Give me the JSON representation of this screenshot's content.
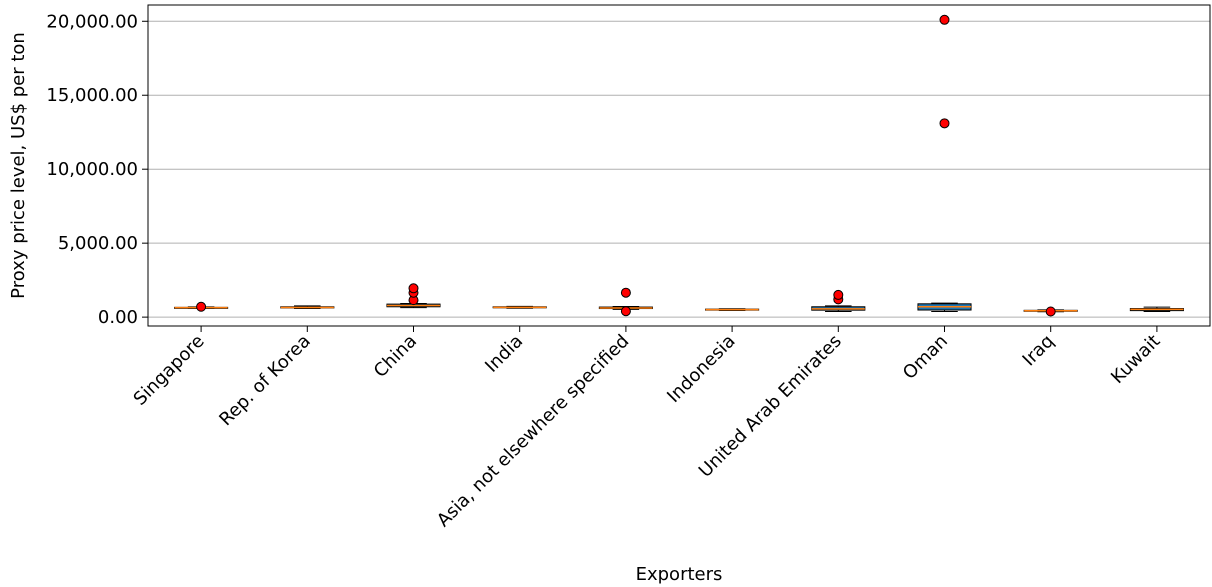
{
  "chart_data": {
    "type": "box",
    "xlabel": "Exporters",
    "ylabel": "Proxy price level, US$ per ton",
    "ylim": [
      -600,
      21100
    ],
    "yticks": [
      0,
      5000,
      10000,
      15000,
      20000
    ],
    "ytick_labels": [
      "0.00",
      "5,000.00",
      "10,000.00",
      "15,000.00",
      "20,000.00"
    ],
    "grid": "horizontal",
    "categories": [
      "Singapore",
      "Rep. of Korea",
      "China",
      "India",
      "Asia, not elsewhere specified",
      "Indonesia",
      "United Arab Emirates",
      "Oman",
      "Iraq",
      "Kuwait"
    ],
    "boxes": [
      {
        "whislo": 590,
        "q1": 620,
        "med": 640,
        "q3": 660,
        "whishi": 690,
        "fliers": [
          700
        ]
      },
      {
        "whislo": 580,
        "q1": 620,
        "med": 650,
        "q3": 700,
        "whishi": 760,
        "fliers": []
      },
      {
        "whislo": 640,
        "q1": 700,
        "med": 790,
        "q3": 880,
        "whishi": 920,
        "fliers": [
          1150,
          1650,
          1950
        ]
      },
      {
        "whislo": 600,
        "q1": 630,
        "med": 660,
        "q3": 700,
        "whishi": 730,
        "fliers": []
      },
      {
        "whislo": 520,
        "q1": 580,
        "med": 620,
        "q3": 680,
        "whishi": 720,
        "fliers": [
          400,
          1650
        ]
      },
      {
        "whislo": 450,
        "q1": 480,
        "med": 510,
        "q3": 540,
        "whishi": 570,
        "fliers": []
      },
      {
        "whislo": 380,
        "q1": 470,
        "med": 560,
        "q3": 700,
        "whishi": 760,
        "fliers": [
          1200,
          1500
        ]
      },
      {
        "whislo": 380,
        "q1": 480,
        "med": 700,
        "q3": 900,
        "whishi": 950,
        "fliers": [
          13100,
          20100
        ]
      },
      {
        "whislo": 360,
        "q1": 400,
        "med": 430,
        "q3": 460,
        "whishi": 490,
        "fliers": [
          380
        ]
      },
      {
        "whislo": 380,
        "q1": 440,
        "med": 520,
        "q3": 580,
        "whishi": 680,
        "fliers": []
      }
    ],
    "colors": {
      "box_fill": "#1f77b4",
      "box_edge": "#000000",
      "median": "#ff7f0e",
      "flier_fill": "#ff0000",
      "flier_edge": "#000000",
      "grid": "#b0b0b0"
    }
  }
}
